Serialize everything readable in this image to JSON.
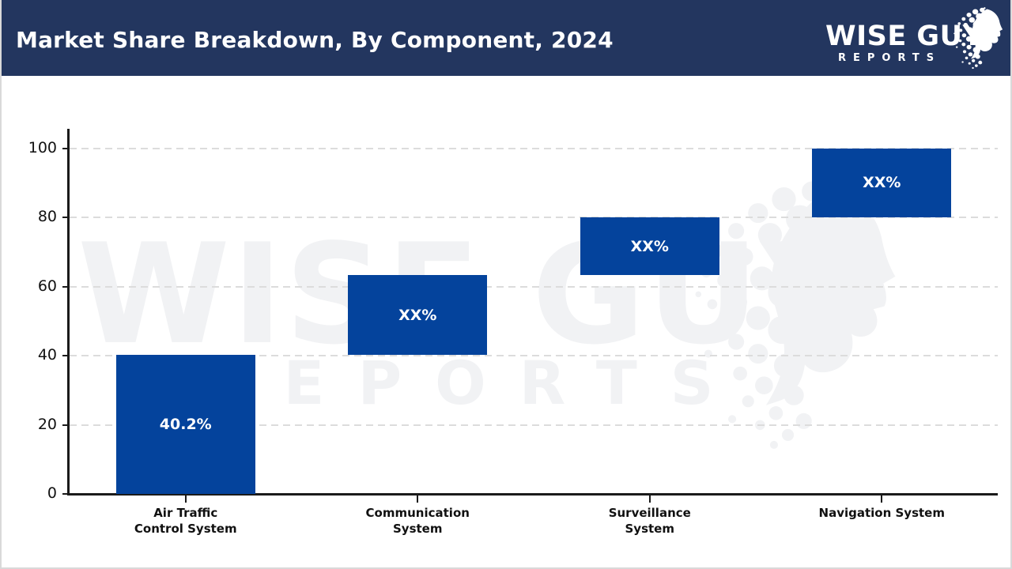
{
  "header": {
    "title": "Market Share Breakdown, By Component, 2024",
    "logo": {
      "name": "WISE GUY",
      "tagline": "REPORTS"
    }
  },
  "watermark": {
    "name": "WISE GUY",
    "tagline": "REPORTS"
  },
  "chart_data": {
    "type": "bar",
    "variant": "waterfall",
    "title": "Market Share Breakdown, By Component, 2024",
    "categories": [
      "Air Traffic Control System",
      "Communication System",
      "Surveillance System",
      "Navigation System"
    ],
    "category_label_lines": [
      [
        "Air Traffic",
        "Control System"
      ],
      [
        "Communication",
        "System"
      ],
      [
        "Surveillance",
        "System"
      ],
      [
        "Navigation System"
      ]
    ],
    "segments": [
      {
        "category": "Air Traffic Control System",
        "start": 0,
        "end": 40.2,
        "label": "40.2%"
      },
      {
        "category": "Communication System",
        "start": 40.2,
        "end": 63.3,
        "label": "XX%"
      },
      {
        "category": "Surveillance System",
        "start": 63.3,
        "end": 80,
        "label": "XX%"
      },
      {
        "category": "Navigation System",
        "start": 80,
        "end": 100,
        "label": "XX%"
      }
    ],
    "xlabel": "",
    "ylabel": "",
    "yticks": [
      0,
      20,
      40,
      60,
      80,
      100
    ],
    "ylim": [
      0,
      100
    ],
    "grid": "horizontal-dashed",
    "legend_position": "none",
    "bar_color": "#04439c",
    "bar_label_color": "#ffffff"
  },
  "colors": {
    "header_bg": "#23365f",
    "bar": "#04439c",
    "grid": "#dcdcdc",
    "axis": "#1a1a1a",
    "watermark": "#f1f2f4",
    "title_text": "#ffffff"
  }
}
